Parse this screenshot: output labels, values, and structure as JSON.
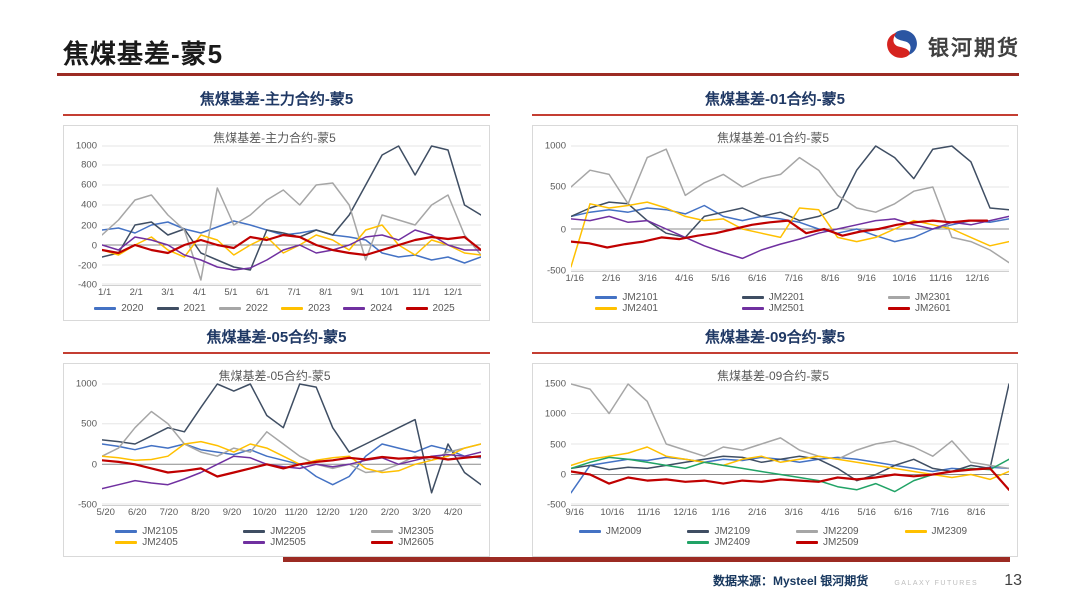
{
  "page": {
    "title": "焦煤基差-蒙5",
    "logo_text": "银河期货",
    "footer": {
      "source": "数据来源：Mysteel 银河期货",
      "brand": "GALAXY FUTURES",
      "page_number": "13"
    }
  },
  "colors": {
    "blue": "#4472C4",
    "navy": "#3F4E63",
    "gray": "#A6A6A6",
    "gold": "#FFC000",
    "purple": "#7030A0",
    "red": "#C00000",
    "green": "#21A366"
  },
  "chart_data": [
    {
      "type": "line",
      "panel_title": "焦煤基差-主力合约-蒙5",
      "title": "焦煤基差-主力合约-蒙5",
      "ylim": [
        -400,
        1000
      ],
      "yticks": [
        1000,
        800,
        600,
        400,
        200,
        0,
        -200,
        -400
      ],
      "xticks": [
        "1/1",
        "2/1",
        "3/1",
        "4/1",
        "5/1",
        "6/1",
        "7/1",
        "8/1",
        "9/1",
        "10/1",
        "11/1",
        "12/1"
      ],
      "grid": true,
      "legend_position": "bottom",
      "series": [
        {
          "name": "2020",
          "color": "blue",
          "values": [
            150,
            170,
            120,
            200,
            230,
            160,
            120,
            180,
            240,
            200,
            150,
            100,
            120,
            150,
            100,
            80,
            50,
            -80,
            -120,
            -100,
            -150,
            -120,
            -180,
            -120
          ]
        },
        {
          "name": "2021",
          "color": "navy",
          "values": [
            -120,
            -80,
            200,
            230,
            100,
            160,
            -80,
            -150,
            -220,
            -250,
            150,
            120,
            80,
            150,
            100,
            300,
            600,
            900,
            1000,
            700,
            1000,
            950,
            400,
            300
          ]
        },
        {
          "name": "2022",
          "color": "gray",
          "values": [
            100,
            250,
            450,
            500,
            300,
            150,
            -350,
            570,
            200,
            300,
            450,
            550,
            400,
            600,
            620,
            400,
            -150,
            300,
            250,
            200,
            400,
            500,
            100,
            -100
          ]
        },
        {
          "name": "2023",
          "color": "gold",
          "values": [
            -50,
            -100,
            0,
            80,
            -50,
            -120,
            100,
            50,
            -100,
            0,
            80,
            -80,
            0,
            100,
            50,
            -50,
            150,
            200,
            0,
            -100,
            50,
            0,
            -80,
            -100
          ]
        },
        {
          "name": "2024",
          "color": "purple",
          "values": [
            0,
            -50,
            80,
            50,
            0,
            -100,
            -150,
            -220,
            -250,
            -230,
            -150,
            -50,
            0,
            -80,
            -50,
            0,
            80,
            100,
            50,
            150,
            100,
            0,
            -50,
            -50
          ]
        },
        {
          "name": "2025",
          "color": "red",
          "values": [
            -50,
            -80,
            0,
            -50,
            -80,
            0,
            50,
            0,
            -30,
            80,
            50,
            100,
            80,
            0,
            -50,
            -80,
            -100,
            -50,
            0,
            50,
            80,
            60,
            80,
            -50
          ]
        }
      ]
    },
    {
      "type": "line",
      "panel_title": "焦煤基差-01合约-蒙5",
      "title": "焦煤基差-01合约-蒙5",
      "ylim": [
        -500,
        1000
      ],
      "yticks": [
        1000,
        500,
        0,
        -500
      ],
      "xticks": [
        "1/16",
        "2/16",
        "3/16",
        "4/16",
        "5/16",
        "6/16",
        "7/16",
        "8/16",
        "9/16",
        "10/16",
        "11/16",
        "12/16"
      ],
      "grid": true,
      "legend_position": "bottom",
      "series": [
        {
          "name": "JM2101",
          "color": "blue",
          "values": [
            150,
            200,
            230,
            200,
            250,
            230,
            180,
            280,
            150,
            100,
            150,
            120,
            80,
            0,
            -50,
            0,
            -80,
            -150,
            -100,
            0,
            50,
            100,
            80,
            120
          ]
        },
        {
          "name": "JM2201",
          "color": "navy",
          "values": [
            150,
            250,
            320,
            300,
            100,
            -50,
            -100,
            150,
            200,
            250,
            150,
            200,
            100,
            150,
            250,
            700,
            1000,
            850,
            600,
            950,
            1000,
            800,
            250,
            230
          ]
        },
        {
          "name": "JM2301",
          "color": "gray",
          "values": [
            500,
            700,
            650,
            300,
            850,
            950,
            400,
            550,
            650,
            500,
            600,
            650,
            850,
            700,
            400,
            250,
            200,
            300,
            450,
            500,
            -100,
            -150,
            -250,
            -400
          ]
        },
        {
          "name": "JM2401",
          "color": "gold",
          "values": [
            -450,
            300,
            250,
            280,
            320,
            250,
            150,
            100,
            120,
            0,
            -50,
            -100,
            250,
            230,
            -100,
            -150,
            -100,
            0,
            100,
            50,
            0,
            -100,
            -200,
            -150
          ]
        },
        {
          "name": "JM2501",
          "color": "purple",
          "values": [
            120,
            100,
            150,
            80,
            100,
            0,
            -100,
            -200,
            -280,
            -350,
            -250,
            -180,
            -120,
            -50,
            0,
            50,
            100,
            120,
            50,
            0,
            80,
            50,
            100,
            150
          ]
        },
        {
          "name": "JM2601",
          "color": "red",
          "xend": 0.95,
          "values": [
            -150,
            -170,
            -220,
            -180,
            -150,
            -100,
            -120,
            -80,
            -50,
            0,
            50,
            80,
            100,
            -50,
            0,
            -80,
            -30,
            0,
            50,
            80,
            100,
            80,
            100,
            100
          ]
        }
      ]
    },
    {
      "type": "line",
      "panel_title": "焦煤基差-05合约-蒙5",
      "title": "焦煤基差-05合约-蒙5",
      "ylim": [
        -500,
        1000
      ],
      "yticks": [
        1000,
        500,
        0,
        -500
      ],
      "xticks": [
        "5/20",
        "6/20",
        "7/20",
        "8/20",
        "9/20",
        "10/20",
        "11/20",
        "12/20",
        "1/20",
        "2/20",
        "3/20",
        "4/20"
      ],
      "grid": true,
      "legend_position": "bottom",
      "series": [
        {
          "name": "JM2105",
          "color": "blue",
          "values": [
            250,
            220,
            180,
            230,
            200,
            250,
            180,
            150,
            120,
            180,
            100,
            50,
            0,
            -150,
            -250,
            -150,
            100,
            250,
            200,
            150,
            230,
            180,
            100,
            80
          ]
        },
        {
          "name": "JM2205",
          "color": "navy",
          "values": [
            300,
            280,
            250,
            350,
            450,
            400,
            700,
            1000,
            900,
            1000,
            600,
            450,
            1000,
            950,
            450,
            150,
            250,
            350,
            450,
            550,
            -350,
            250,
            -100,
            -250
          ]
        },
        {
          "name": "JM2305",
          "color": "gray",
          "values": [
            100,
            200,
            450,
            650,
            500,
            250,
            150,
            100,
            200,
            150,
            400,
            250,
            100,
            0,
            -50,
            0,
            -100,
            -80,
            0,
            100,
            50,
            150,
            200,
            250
          ]
        },
        {
          "name": "JM2405",
          "color": "gold",
          "values": [
            100,
            80,
            50,
            60,
            100,
            250,
            280,
            230,
            150,
            250,
            200,
            100,
            0,
            50,
            80,
            100,
            -50,
            -100,
            -80,
            0,
            50,
            100,
            200,
            250
          ]
        },
        {
          "name": "JM2505",
          "color": "purple",
          "values": [
            -300,
            -250,
            -200,
            -230,
            -250,
            -180,
            -100,
            0,
            100,
            80,
            0,
            -30,
            -50,
            0,
            -30,
            0,
            50,
            80,
            0,
            50,
            100,
            120,
            100,
            150
          ]
        },
        {
          "name": "JM2605",
          "color": "red",
          "values": [
            50,
            30,
            0,
            -50,
            -100,
            -80,
            -50,
            -150,
            -100,
            -50,
            0,
            -50,
            0,
            30,
            50,
            80,
            60,
            90,
            70,
            80,
            90,
            60,
            80,
            100
          ]
        }
      ]
    },
    {
      "type": "line",
      "panel_title": "焦煤基差-09合约-蒙5",
      "title": "焦煤基差-09合约-蒙5",
      "ylim": [
        -500,
        1500
      ],
      "yticks": [
        1500,
        1000,
        500,
        0,
        -500
      ],
      "xticks": [
        "9/16",
        "10/16",
        "11/16",
        "12/16",
        "1/16",
        "2/16",
        "3/16",
        "4/16",
        "5/16",
        "6/16",
        "7/16",
        "8/16"
      ],
      "grid": true,
      "legend_position": "bottom",
      "series": [
        {
          "name": "JM2009",
          "color": "blue",
          "values": [
            -300,
            150,
            200,
            250,
            230,
            280,
            250,
            200,
            250,
            230,
            280,
            250,
            200,
            250,
            280,
            250,
            200,
            150,
            100,
            50,
            100,
            80,
            120,
            100
          ]
        },
        {
          "name": "JM2109",
          "color": "navy",
          "values": [
            100,
            150,
            80,
            120,
            100,
            150,
            200,
            250,
            300,
            280,
            200,
            250,
            300,
            250,
            100,
            -100,
            0,
            150,
            250,
            100,
            50,
            150,
            100,
            1500
          ]
        },
        {
          "name": "JM2209",
          "color": "gray",
          "values": [
            1500,
            1400,
            1000,
            1500,
            1200,
            500,
            400,
            300,
            450,
            400,
            500,
            600,
            400,
            300,
            250,
            400,
            500,
            550,
            450,
            300,
            550,
            200,
            150,
            100
          ]
        },
        {
          "name": "JM2309",
          "color": "gold",
          "values": [
            150,
            250,
            300,
            350,
            450,
            300,
            250,
            200,
            150,
            250,
            300,
            200,
            250,
            300,
            250,
            200,
            150,
            100,
            50,
            0,
            -50,
            0,
            -80,
            50
          ]
        },
        {
          "name": "JM2409",
          "color": "green",
          "values": [
            100,
            200,
            280,
            250,
            200,
            150,
            100,
            200,
            150,
            100,
            50,
            0,
            -50,
            -100,
            -200,
            -250,
            -150,
            -280,
            -100,
            0,
            50,
            100,
            80,
            250
          ]
        },
        {
          "name": "JM2509",
          "color": "red",
          "values": [
            50,
            0,
            -150,
            -50,
            -100,
            -80,
            -120,
            -100,
            -150,
            -100,
            -120,
            -80,
            -100,
            -120,
            -50,
            -80,
            -50,
            0,
            -30,
            0,
            50,
            80,
            100,
            -250
          ]
        }
      ]
    }
  ]
}
